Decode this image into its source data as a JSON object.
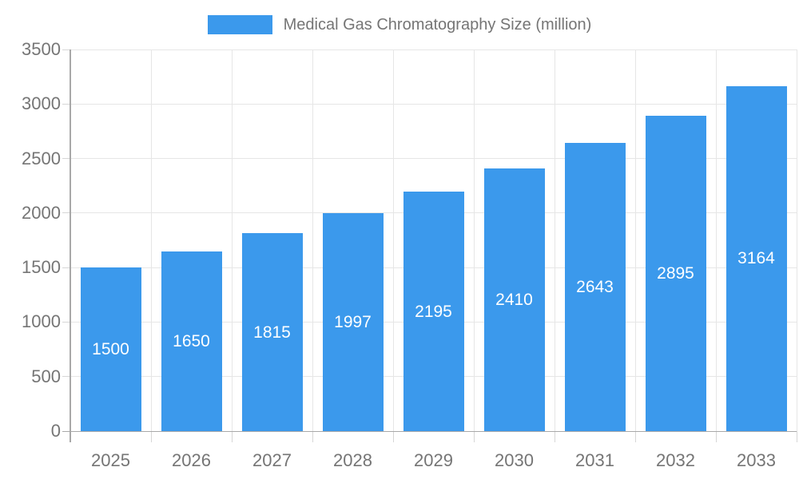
{
  "legend": {
    "series_label": "Medical Gas Chromatography Size (million)"
  },
  "chart_data": {
    "type": "bar",
    "title": "Medical Gas Chromatography Size (million)",
    "categories": [
      "2025",
      "2026",
      "2027",
      "2028",
      "2029",
      "2030",
      "2031",
      "2032",
      "2033"
    ],
    "series": [
      {
        "name": "Medical Gas Chromatography Size (million)",
        "values": [
          1500,
          1650,
          1815,
          1997,
          2195,
          2410,
          2643,
          2895,
          3164
        ]
      }
    ],
    "value_labels": [
      "1500",
      "1650",
      "1815",
      "1997",
      "2195",
      "2410",
      "2643",
      "2895",
      "3164"
    ],
    "xlabel": "",
    "ylabel": "",
    "ylim": [
      0,
      3500
    ],
    "ytick_step": 500,
    "yticks": [
      0,
      500,
      1000,
      1500,
      2000,
      2500,
      3000,
      3500
    ],
    "grid": true,
    "legend_position": "top",
    "colors": {
      "bar": "#3B99EC",
      "value_label": "#ffffff",
      "axis_text": "#757575",
      "gridline": "#e6e6e6",
      "axis_line": "#a8a8a8",
      "background": "#ffffff"
    }
  }
}
